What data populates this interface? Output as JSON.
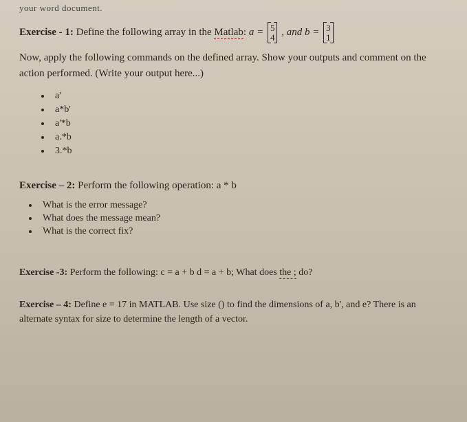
{
  "truncated": "your word document.",
  "ex1": {
    "label": "Exercise - 1:",
    "intro": "Define the following array in the ",
    "matlab": "Matlab",
    "colon": ": ",
    "aeq": "a = ",
    "a_top": "5",
    "a_bot": "4",
    "and": ", and b = ",
    "b_top": "3",
    "b_bot": "1",
    "body1": "Now, apply the following commands on the defined array. Show your outputs and comment on the action performed. (Write your output here...)",
    "items": [
      "a'",
      "a*b'",
      "a'*b",
      "a.*b",
      "3.*b"
    ]
  },
  "ex2": {
    "label": "Exercise – 2:",
    "text": "Perform the following operation: a * b",
    "items": [
      "What is the error message?",
      "What does the message mean?",
      "What is the correct fix?"
    ]
  },
  "ex3": {
    "label": "Exercise -3:",
    "text_a": " Perform the following: c = a + b d = a + b; What does ",
    "the_semi": "the ;",
    "text_b": " do?"
  },
  "ex4": {
    "label": "Exercise – 4:",
    "text": " Define e = 17 in MATLAB. Use size () to find the dimensions of a, b', and e? There is an alternate syntax for size to determine the length of a vector."
  }
}
